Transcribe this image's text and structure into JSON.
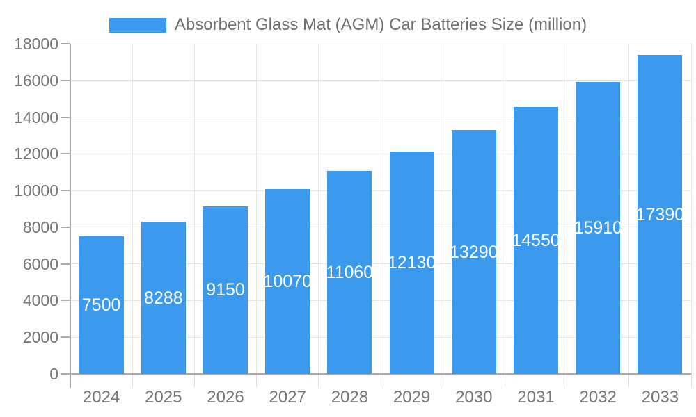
{
  "legend": {
    "label": "Absorbent Glass Mat (AGM) Car Batteries Size (million)"
  },
  "colors": {
    "bar": "#3B99EE",
    "grid": "#E6E6E6",
    "axis": "#ABABAB",
    "boundary_tick": "#E0E0E0",
    "tick_label_text": "#757575",
    "legend_text": "#6E6E6E",
    "value_label_text": "#FFFFFF",
    "background": "#FFFFFF"
  },
  "chart_data": {
    "type": "bar",
    "title": "Absorbent Glass Mat (AGM) Car Batteries Size (million)",
    "series": [
      {
        "name": "Absorbent Glass Mat (AGM) Car Batteries Size (million)",
        "values": [
          7500,
          8288,
          9150,
          10070,
          11060,
          12130,
          13290,
          14550,
          15910,
          17390
        ]
      }
    ],
    "categories": [
      "2024",
      "2025",
      "2026",
      "2027",
      "2028",
      "2029",
      "2030",
      "2031",
      "2032",
      "2033"
    ],
    "value_labels": [
      "7500",
      "8288",
      "9150",
      "10070",
      "11060",
      "12130",
      "13290",
      "14550",
      "15910",
      "17390"
    ],
    "value_label_position": "inside-center",
    "xlabel": "",
    "ylabel": "",
    "ylim": [
      0,
      18000
    ],
    "yticks": [
      0,
      2000,
      4000,
      6000,
      8000,
      10000,
      12000,
      14000,
      16000,
      18000
    ],
    "grid": true,
    "grid_vertical_at_category_boundaries": true,
    "legend_position": "top-center"
  }
}
